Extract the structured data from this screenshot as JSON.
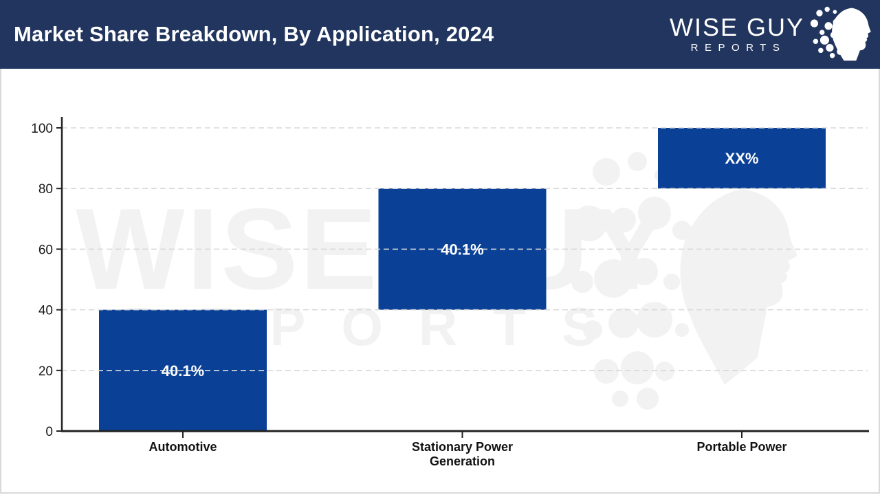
{
  "header": {
    "title": "Market Share Breakdown, By Application, 2024",
    "background_color": "#21355e"
  },
  "logo": {
    "primary": "WISE GUY",
    "secondary": "REPORTS",
    "icon": "dotted-head-profile",
    "color": "#ffffff"
  },
  "watermark": {
    "primary": "WISE GUY",
    "secondary": "REPORTS",
    "icon": "dotted-head-profile",
    "color": "#f2f2f2"
  },
  "chart_data": {
    "type": "bar",
    "subtype": "floating-segment-bars",
    "title": "Market Share Breakdown, By Application, 2024",
    "categories": [
      "Automotive",
      "Stationary Power Generation",
      "Portable Power"
    ],
    "category_label_lines": [
      [
        "Automotive"
      ],
      [
        "Stationary Power",
        "Generation"
      ],
      [
        "Portable Power"
      ]
    ],
    "bars": [
      {
        "category": "Automotive",
        "from": 0,
        "to": 40,
        "label": "40.1%"
      },
      {
        "category": "Stationary Power Generation",
        "from": 40,
        "to": 80,
        "label": "40.1%"
      },
      {
        "category": "Portable Power",
        "from": 80,
        "to": 100,
        "label": "XX%"
      }
    ],
    "xlabel": "",
    "ylabel": "",
    "ylim": [
      0,
      100
    ],
    "yticks": [
      0,
      20,
      40,
      60,
      80,
      100
    ],
    "grid": "horizontal-dashed-over-bars",
    "legend": "none",
    "bar_color": "#0a4197",
    "axis_color": "#222222",
    "gridline_color": "#d8d8d8",
    "tick_label_color": "#1a1a1a",
    "value_label_color": "#ffffff"
  }
}
